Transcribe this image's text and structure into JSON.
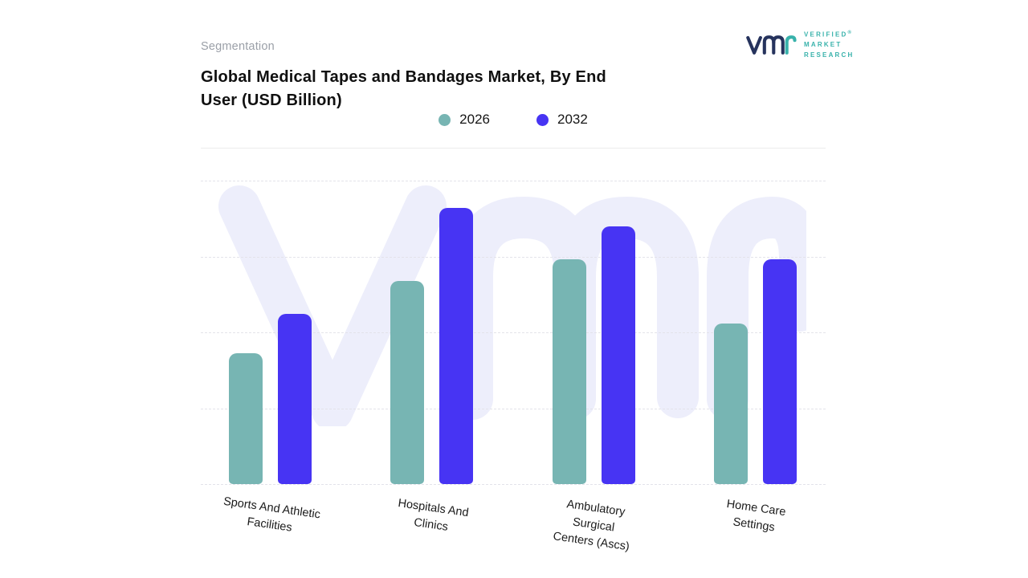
{
  "page": {
    "eyebrow": "Segmentation",
    "title": "Global Medical Tapes and Bandages Market, By End User (USD Billion)",
    "title_lines": [
      "Global Medical Tapes and Bandages Market, By End",
      "User (USD Billion)"
    ]
  },
  "logo": {
    "brand": "vmr",
    "lines": [
      "VERIFIED",
      "MARKET",
      "RESEARCH"
    ],
    "registered": "®",
    "navy": "#26335d",
    "teal": "#38b2ab"
  },
  "legend": [
    {
      "label": "2026",
      "color": "#77b5b3"
    },
    {
      "label": "2032",
      "color": "#4734f3"
    }
  ],
  "watermark": {
    "text": "vmr",
    "color": "#edeefb"
  },
  "chart_data": {
    "type": "bar",
    "title": "Global Medical Tapes and Bandages Market, By End User (USD Billion)",
    "xlabel": "",
    "ylabel": "USD Billion",
    "categories": [
      "Sports And Athletic Facilities",
      "Hospitals And Clinics",
      "Ambulatory Surgical Centers (Ascs)",
      "Home Care Settings"
    ],
    "category_lines": [
      [
        "Sports And Athletic",
        "Facilities"
      ],
      [
        "Hospitals And",
        "Clinics"
      ],
      [
        "Ambulatory",
        "Surgical",
        "Centers (Ascs)"
      ],
      [
        "Home Care",
        "Settings"
      ]
    ],
    "series": [
      {
        "name": "2026",
        "color": "#77b5b3",
        "values": [
          43,
          67,
          74,
          53
        ]
      },
      {
        "name": "2032",
        "color": "#4734f3",
        "values": [
          56,
          91,
          85,
          74
        ]
      }
    ],
    "value_scale_note": "y-axis tick labels are not shown in the figure; values are relative estimates on a 0-100 scale of plot height",
    "ylim": [
      0,
      100
    ],
    "grid": "dashed horizontal gridlines",
    "legend_position": "top center",
    "y_axis_labels_visible": false
  }
}
